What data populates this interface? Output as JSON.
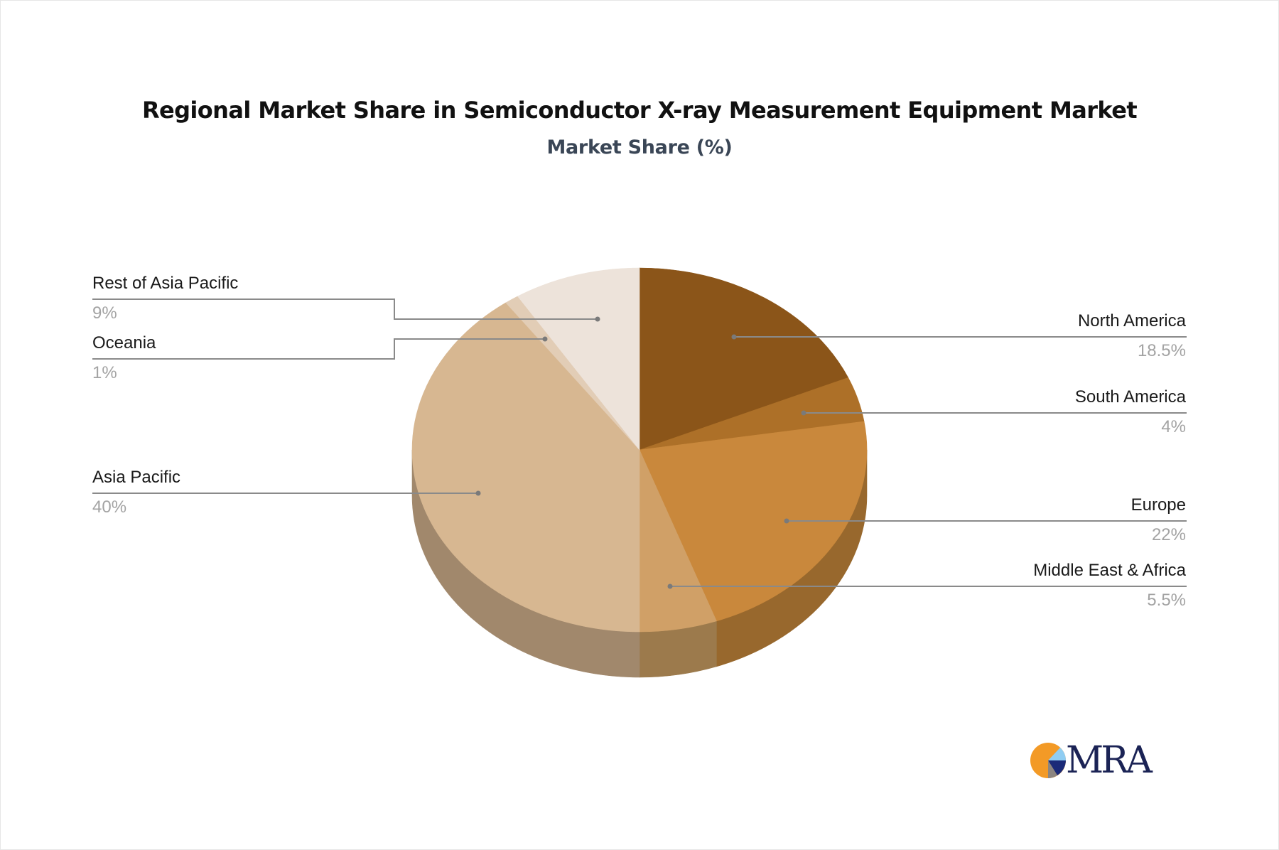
{
  "header": {
    "title": "Regional Market Share in Semiconductor X-ray Measurement Equipment Market",
    "subtitle": "Market Share (%)"
  },
  "logo": {
    "text": "MRA",
    "colors": {
      "orange": "#f39a26",
      "light_blue": "#8fcdf2",
      "navy": "#1b2a78",
      "gray": "#8c8580",
      "text": "#1b2355"
    }
  },
  "chart_data": {
    "type": "pie",
    "style": "3d",
    "title": "Regional Market Share in Semiconductor X-ray Measurement Equipment Market",
    "subtitle": "Market Share (%)",
    "unit": "%",
    "start_angle": "12 o'clock, clockwise",
    "slices": [
      {
        "label": "North America",
        "value": 18.5,
        "display": "18.5%",
        "color": "#8b5519",
        "side": "#7a4a16",
        "label_side": "right"
      },
      {
        "label": "South America",
        "value": 4,
        "display": "4%",
        "color": "#ad7028",
        "side": "#986225",
        "label_side": "right"
      },
      {
        "label": "Europe",
        "value": 22,
        "display": "22%",
        "color": "#c9883c",
        "side": "#98682d",
        "label_side": "right"
      },
      {
        "label": "Middle East & Africa",
        "value": 5.5,
        "display": "5.5%",
        "color": "#d0a067",
        "side": "#9c7a4c",
        "label_side": "right"
      },
      {
        "label": "Asia Pacific",
        "value": 40,
        "display": "40%",
        "color": "#d7b791",
        "side": "#a1886c",
        "label_side": "left"
      },
      {
        "label": "Oceania",
        "value": 1,
        "display": "1%",
        "color": "#e2cdb6",
        "side": "#aa9a86",
        "label_side": "left"
      },
      {
        "label": "Rest of Asia Pacific",
        "value": 9,
        "display": "9%",
        "color": "#ede3da",
        "side": "#b3aaa1",
        "label_side": "left"
      }
    ],
    "legend": "none (callout labels with leader lines)"
  }
}
